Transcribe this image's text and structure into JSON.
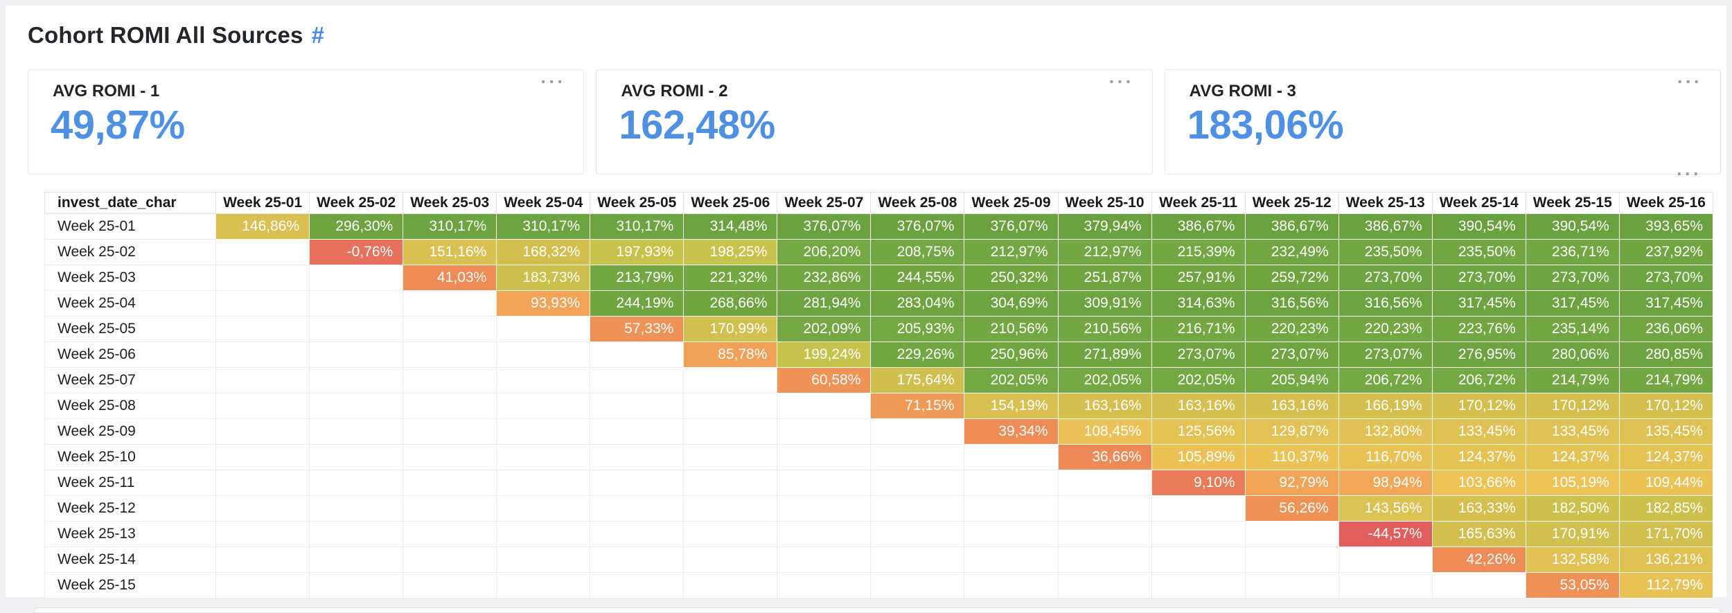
{
  "page": {
    "title": "Cohort ROMI All Sources",
    "hash": "#"
  },
  "icons": {
    "ellipsis": "···"
  },
  "colors": {
    "accent_blue": "#4e90e4",
    "hash_link_blue": "#4a86e8",
    "page_background": "#f1f1f3",
    "grid_border": "#ededef",
    "cell_text": "#ffffff"
  },
  "kpi_cards": [
    {
      "label": "AVG ROMI - 1",
      "value": "49,87%"
    },
    {
      "label": "AVG ROMI - 2",
      "value": "162,48%"
    },
    {
      "label": "AVG ROMI - 3",
      "value": "183,06%"
    }
  ],
  "chart_data": {
    "type": "heatmap",
    "title": "Cohort ROMI All Sources",
    "row_header": "invest_date_char",
    "value_format": "percent_comma_2dp",
    "columns": [
      "Week 25-01",
      "Week 25-02",
      "Week 25-03",
      "Week 25-04",
      "Week 25-05",
      "Week 25-06",
      "Week 25-07",
      "Week 25-08",
      "Week 25-09",
      "Week 25-10",
      "Week 25-11",
      "Week 25-12",
      "Week 25-13",
      "Week 25-14",
      "Week 25-15",
      "Week 25-16"
    ],
    "rows": [
      "Week 25-01",
      "Week 25-02",
      "Week 25-03",
      "Week 25-04",
      "Week 25-05",
      "Week 25-06",
      "Week 25-07",
      "Week 25-08",
      "Week 25-09",
      "Week 25-10",
      "Week 25-11",
      "Week 25-12",
      "Week 25-13",
      "Week 25-14",
      "Week 25-15"
    ],
    "values": [
      [
        146.86,
        296.3,
        310.17,
        310.17,
        310.17,
        314.48,
        376.07,
        376.07,
        376.07,
        379.94,
        386.67,
        386.67,
        386.67,
        390.54,
        390.54,
        393.65
      ],
      [
        null,
        -0.76,
        151.16,
        168.32,
        197.93,
        198.25,
        206.2,
        208.75,
        212.97,
        212.97,
        215.39,
        232.49,
        235.5,
        235.5,
        236.71,
        237.92
      ],
      [
        null,
        null,
        41.03,
        183.73,
        213.79,
        221.32,
        232.86,
        244.55,
        250.32,
        251.87,
        257.91,
        259.72,
        273.7,
        273.7,
        273.7,
        273.7
      ],
      [
        null,
        null,
        null,
        93.93,
        244.19,
        268.66,
        281.94,
        283.04,
        304.69,
        309.91,
        314.63,
        316.56,
        316.56,
        317.45,
        317.45,
        317.45
      ],
      [
        null,
        null,
        null,
        null,
        57.33,
        170.99,
        202.09,
        205.93,
        210.56,
        210.56,
        216.71,
        220.23,
        220.23,
        223.76,
        235.14,
        236.06
      ],
      [
        null,
        null,
        null,
        null,
        null,
        85.78,
        199.24,
        229.26,
        250.96,
        271.89,
        273.07,
        273.07,
        273.07,
        276.95,
        280.06,
        280.85
      ],
      [
        null,
        null,
        null,
        null,
        null,
        null,
        60.58,
        175.64,
        202.05,
        202.05,
        202.05,
        205.94,
        206.72,
        206.72,
        214.79,
        214.79
      ],
      [
        null,
        null,
        null,
        null,
        null,
        null,
        null,
        71.15,
        154.19,
        163.16,
        163.16,
        163.16,
        166.19,
        170.12,
        170.12,
        170.12
      ],
      [
        null,
        null,
        null,
        null,
        null,
        null,
        null,
        null,
        39.34,
        108.45,
        125.56,
        129.87,
        132.8,
        133.45,
        133.45,
        135.45
      ],
      [
        null,
        null,
        null,
        null,
        null,
        null,
        null,
        null,
        null,
        36.66,
        105.89,
        110.37,
        116.7,
        124.37,
        124.37,
        124.37
      ],
      [
        null,
        null,
        null,
        null,
        null,
        null,
        null,
        null,
        null,
        null,
        9.1,
        92.79,
        98.94,
        103.66,
        105.19,
        109.44
      ],
      [
        null,
        null,
        null,
        null,
        null,
        null,
        null,
        null,
        null,
        null,
        null,
        56.26,
        143.56,
        163.33,
        182.5,
        182.85
      ],
      [
        null,
        null,
        null,
        null,
        null,
        null,
        null,
        null,
        null,
        null,
        null,
        null,
        -44.57,
        165.63,
        170.91,
        171.7
      ],
      [
        null,
        null,
        null,
        null,
        null,
        null,
        null,
        null,
        null,
        null,
        null,
        null,
        null,
        42.26,
        132.58,
        136.21
      ],
      [
        null,
        null,
        null,
        null,
        null,
        null,
        null,
        null,
        null,
        null,
        null,
        null,
        null,
        null,
        53.05,
        112.79
      ]
    ],
    "color_scale": {
      "legend": "red below 0, orange 0-100, gold 100-200, green 200+",
      "stops": [
        [
          -45,
          "#e25e5d"
        ],
        [
          -1,
          "#e7705d"
        ],
        [
          0,
          "#e87659"
        ],
        [
          35,
          "#ee8957"
        ],
        [
          60,
          "#ef9356"
        ],
        [
          75,
          "#f09c57"
        ],
        [
          99.9,
          "#f1a658"
        ],
        [
          100,
          "#efc258"
        ],
        [
          125,
          "#e4c254"
        ],
        [
          150,
          "#d9c052"
        ],
        [
          175,
          "#d0bf4e"
        ],
        [
          199.9,
          "#c6c24c"
        ],
        [
          200,
          "#74a843"
        ],
        [
          260,
          "#6fa441"
        ],
        [
          394,
          "#6aa03e"
        ]
      ]
    }
  }
}
